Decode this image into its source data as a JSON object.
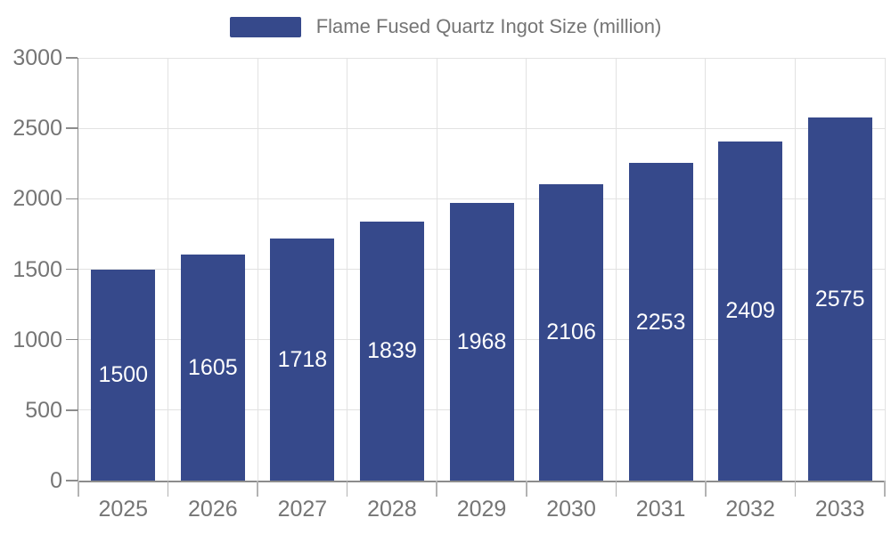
{
  "legend": {
    "label": "Flame Fused Quartz Ingot Size (million)"
  },
  "chart_data": {
    "type": "bar",
    "title": "Flame Fused Quartz Ingot Size (million)",
    "series_name": "Flame Fused Quartz Ingot Size (million)",
    "categories": [
      "2025",
      "2026",
      "2027",
      "2028",
      "2029",
      "2030",
      "2031",
      "2032",
      "2033"
    ],
    "values": [
      1500,
      1605,
      1718,
      1839,
      1968,
      2106,
      2253,
      2409,
      2575
    ],
    "xlabel": "",
    "ylabel": "",
    "ylim": [
      0,
      3000
    ],
    "y_ticks": [
      0,
      500,
      1000,
      1500,
      2000,
      2500,
      3000
    ],
    "grid": true,
    "legend_position": "top",
    "bar_labels_inside": true,
    "colors": {
      "bar": "#36498b",
      "bar_label": "#ffffff",
      "axis_line": "#8c8c8c",
      "grid_line": "#e2e2e2",
      "tick_label": "#757575",
      "legend_text": "#757575",
      "background": "#ffffff"
    }
  }
}
